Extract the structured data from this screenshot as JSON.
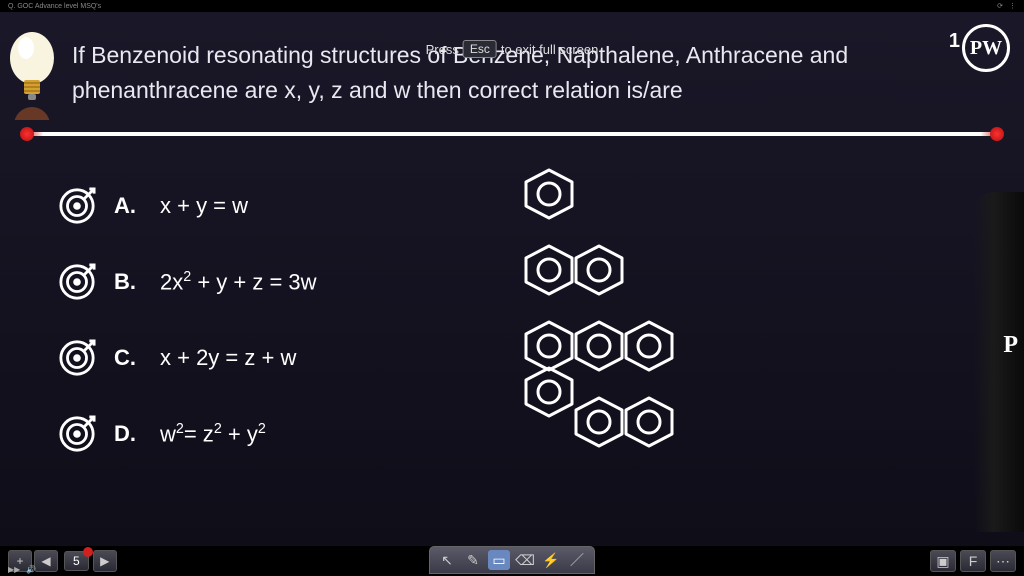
{
  "topbar": {
    "title": "Q. GOC Advance level MSQ's"
  },
  "esc_hint": {
    "prefix": "Press",
    "key": "Esc",
    "suffix": "to exit full screen"
  },
  "qnum": "1",
  "logo": "PW",
  "question": {
    "text": "If Benzenoid resonating structures of Benzene, Napthalene, Anthracene and phenanthracene are x, y, z and w then correct relation is/are"
  },
  "options": {
    "A": {
      "label": "A.",
      "expr_html": "x + y = w"
    },
    "B": {
      "label": "B.",
      "expr_html": "2x<sup>2</sup> + y + z = 3w"
    },
    "C": {
      "label": "C.",
      "expr_html": "x + 2y = z + w"
    },
    "D": {
      "label": "D.",
      "expr_html": "w<sup>2</sup>= z<sup>2</sup> + y<sup>2</sup>"
    }
  },
  "drawings": {
    "stroke": "#ffffff",
    "stroke_width": 3,
    "rows": [
      {
        "hex_count": 1,
        "circles": true
      },
      {
        "hex_count": 2,
        "circles": true
      },
      {
        "hex_count": 3,
        "circles": true
      },
      {
        "hex_count": 3,
        "circles": true,
        "offset_first": true
      }
    ]
  },
  "nav": {
    "page": "5"
  },
  "tools": [
    "cursor",
    "pen",
    "rect",
    "eraser",
    "wand",
    "line"
  ],
  "colors": {
    "bg_top": "#1a1828",
    "bg_bottom": "#0f0d18",
    "text": "#e8e8f0",
    "accent_red": "#c82020",
    "divider": "#ffffff"
  }
}
